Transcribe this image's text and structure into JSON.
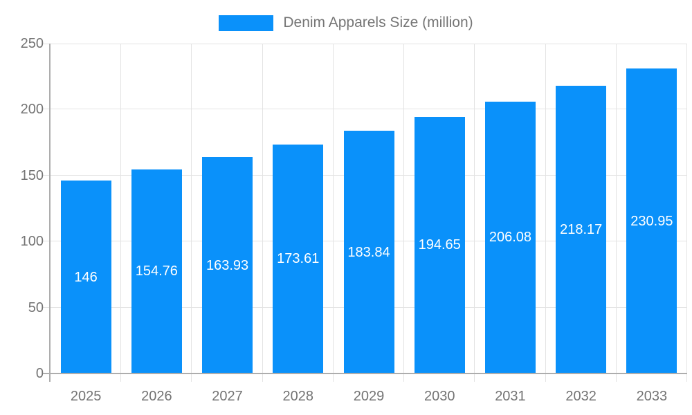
{
  "legend": {
    "label": "Denim Apparels Size (million)"
  },
  "colors": {
    "bar": "#0a91fa",
    "bar_label_text": "#ffffff",
    "axis_line": "#adadad",
    "grid_line": "#e3e3e3",
    "tick_label_text": "#737373",
    "legend_text": "#757575",
    "background": "#ffffff"
  },
  "chart_data": {
    "type": "bar",
    "title": "Denim Apparels Size (million)",
    "xlabel": "",
    "ylabel": "",
    "categories": [
      "2025",
      "2026",
      "2027",
      "2028",
      "2029",
      "2030",
      "2031",
      "2032",
      "2033"
    ],
    "values": [
      146,
      154.76,
      163.93,
      173.61,
      183.84,
      194.65,
      206.08,
      218.17,
      230.95
    ],
    "value_labels": [
      "146",
      "154.76",
      "163.93",
      "173.61",
      "183.84",
      "194.65",
      "206.08",
      "218.17",
      "230.95"
    ],
    "series_name": "Denim Apparels Size (million)",
    "ylim": [
      0,
      250
    ],
    "yticks": [
      0,
      50,
      100,
      150,
      200,
      250
    ],
    "grid": true,
    "legend_position": "top",
    "value_label_position": "center-of-bar",
    "value_label_color": "#ffffff"
  }
}
